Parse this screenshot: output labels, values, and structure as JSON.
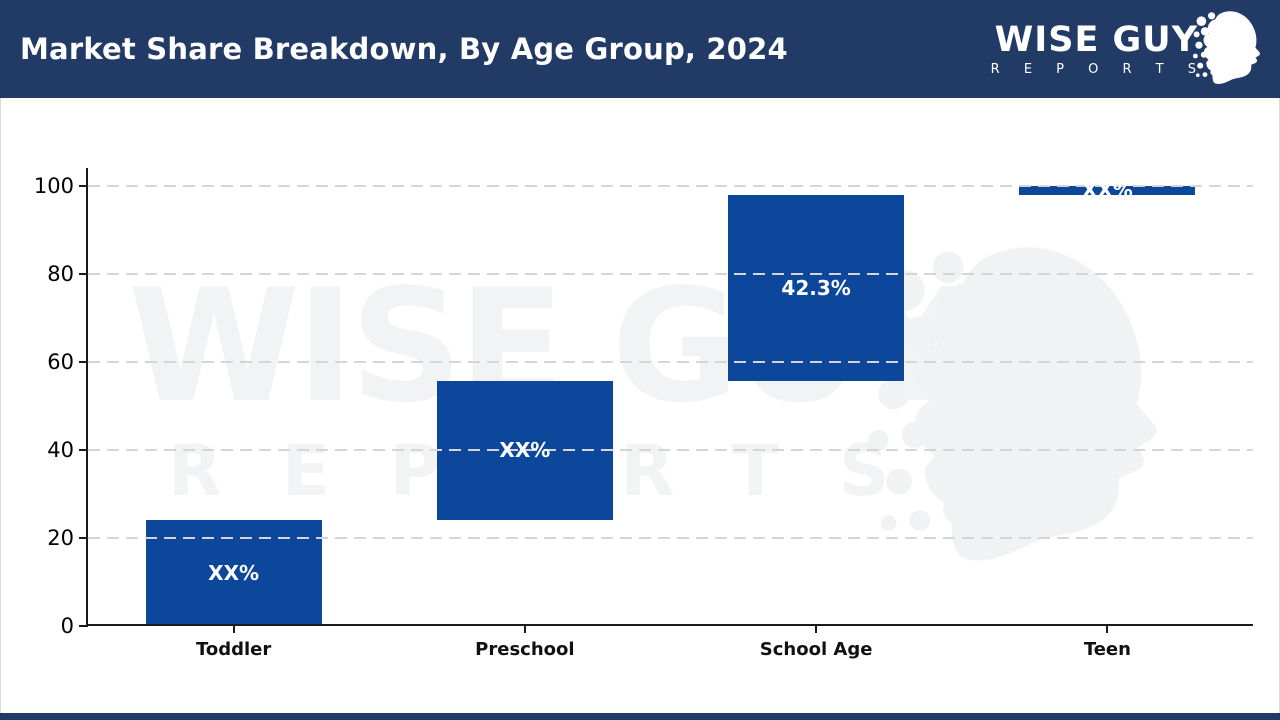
{
  "header": {
    "title": "Market Share Breakdown, By Age Group, 2024",
    "logo": {
      "line1": "WISE GUY",
      "line2": "R E P O R T S"
    }
  },
  "watermark": {
    "line1": "WISE GUY",
    "line2": "REPORTS"
  },
  "chart_data": {
    "type": "bar",
    "subtype": "waterfall",
    "title": "Market Share Breakdown, By Age Group, 2024",
    "categories": [
      "Toddler",
      "Preschool",
      "School Age",
      "Teen"
    ],
    "segments": [
      {
        "category": "Toddler",
        "start": 0,
        "end": 24.2,
        "label": "XX%"
      },
      {
        "category": "Preschool",
        "start": 24.2,
        "end": 55.7,
        "label": "XX%"
      },
      {
        "category": "School Age",
        "start": 55.7,
        "end": 98.0,
        "label": "42.3%"
      },
      {
        "category": "Teen",
        "start": 98.0,
        "end": 100.0,
        "label": "XX%"
      }
    ],
    "increments_pct": [
      24.2,
      31.5,
      42.3,
      2.0
    ],
    "y_axis": {
      "ticks": [
        0,
        20,
        40,
        60,
        80,
        100
      ],
      "range": [
        0,
        104
      ]
    },
    "xlabel": "",
    "ylabel": "",
    "legend": null,
    "grid": {
      "horizontal": true,
      "style": "dashed"
    },
    "bar_color": "#0c479c",
    "bar_label_color": "#ffffff"
  },
  "colors": {
    "header_navy": "#223a66",
    "bar_blue": "#0c479c",
    "watermark_gray": "#f2f3f5",
    "grid_gray": "#d5d5d5",
    "axis_black": "#1a1a1a"
  }
}
